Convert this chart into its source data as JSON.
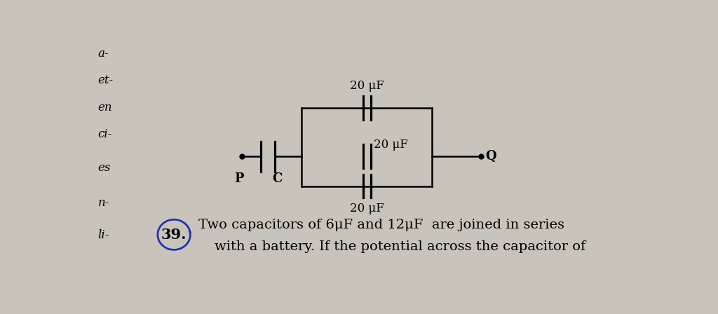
{
  "bg_color": "#c8c4bc",
  "circuit": {
    "P_label": "P",
    "C_label": "C",
    "Q_label": "Q",
    "cap_labels": [
      "20 μF",
      "20 μF",
      "20 μF"
    ]
  },
  "left_margin_text": [
    "a-",
    "et-",
    "en",
    "ci-",
    "es",
    "n-",
    "li-"
  ],
  "question_number": "39.",
  "question_line1": "Two capacitors of 6μF and 12μF  are joined in series",
  "question_line2": "with a battery. If the potential across the capacitor of",
  "font_size_circuit": 12,
  "font_size_text": 14,
  "font_size_margin": 12
}
